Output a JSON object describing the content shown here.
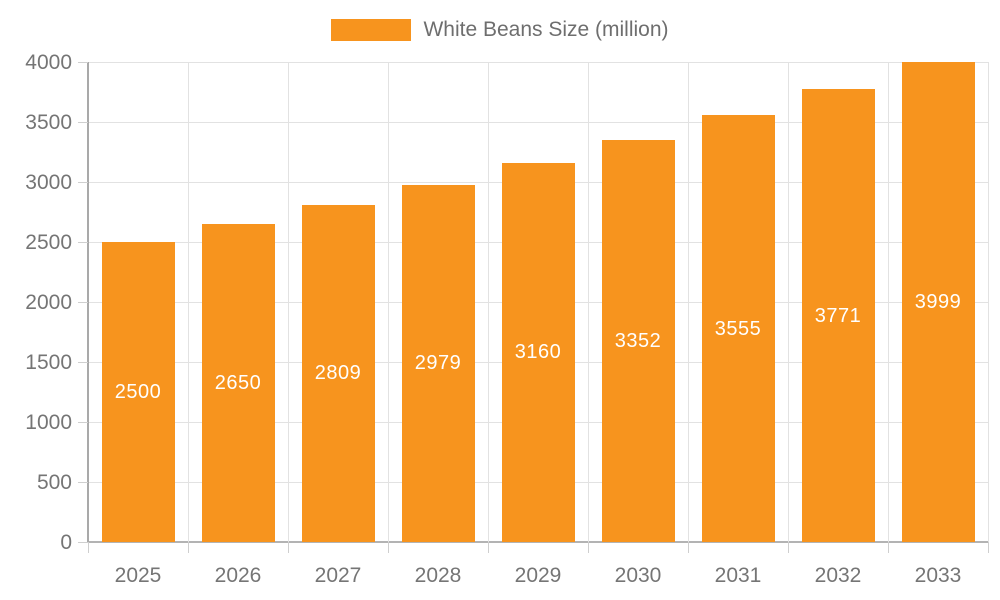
{
  "chart_data": {
    "type": "bar",
    "title": "White Beans Size (million)",
    "legend": [
      "White Beans Size (million)"
    ],
    "legend_position": "top",
    "categories": [
      "2025",
      "2026",
      "2027",
      "2028",
      "2029",
      "2030",
      "2031",
      "2032",
      "2033"
    ],
    "series": [
      {
        "name": "White Beans Size (million)",
        "values": [
          2500,
          2650,
          2809,
          2979,
          3160,
          3352,
          3555,
          3771,
          3999
        ]
      }
    ],
    "xlabel": "",
    "ylabel": "",
    "ylim": [
      0,
      4000
    ],
    "yticks": [
      0,
      500,
      1000,
      1500,
      2000,
      2500,
      3000,
      3500,
      4000
    ],
    "grid": "on",
    "bar_label_position": "inside-center",
    "colors": {
      "bar": "#f7941e",
      "bar_value_label": "#ffffff",
      "axis_text": "#757575",
      "legend_text": "#6e6e6e",
      "gridline": "#e2e2e2",
      "axis_line": "#b3b3b3",
      "background": "#ffffff"
    }
  }
}
